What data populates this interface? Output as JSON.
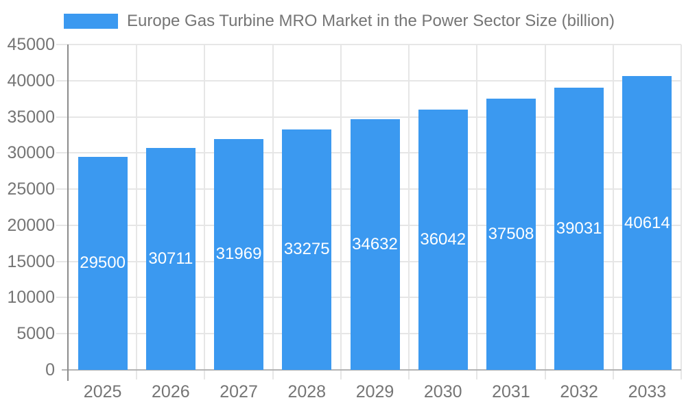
{
  "chart_data": {
    "type": "bar",
    "title": "Europe Gas Turbine MRO Market in the Power Sector Size (billion)",
    "categories": [
      "2025",
      "2026",
      "2027",
      "2028",
      "2029",
      "2030",
      "2031",
      "2032",
      "2033"
    ],
    "values": [
      29500,
      30711,
      31969,
      33275,
      34632,
      36042,
      37508,
      39031,
      40614
    ],
    "xlabel": "",
    "ylabel": "",
    "ylim": [
      0,
      45000
    ],
    "ytick_step": 5000,
    "grid": true,
    "legend_position": "top-left",
    "value_labels_position": "inside-center",
    "colors": {
      "bar": "#3b99f0",
      "bar_label": "#ffffff",
      "axis_text": "#757575",
      "title_text": "#757575",
      "gridline": "#e6e6e6",
      "y_axis_line": "#8c8c8c",
      "x_axis_line": "#b3b3b3",
      "background": "#ffffff"
    }
  }
}
